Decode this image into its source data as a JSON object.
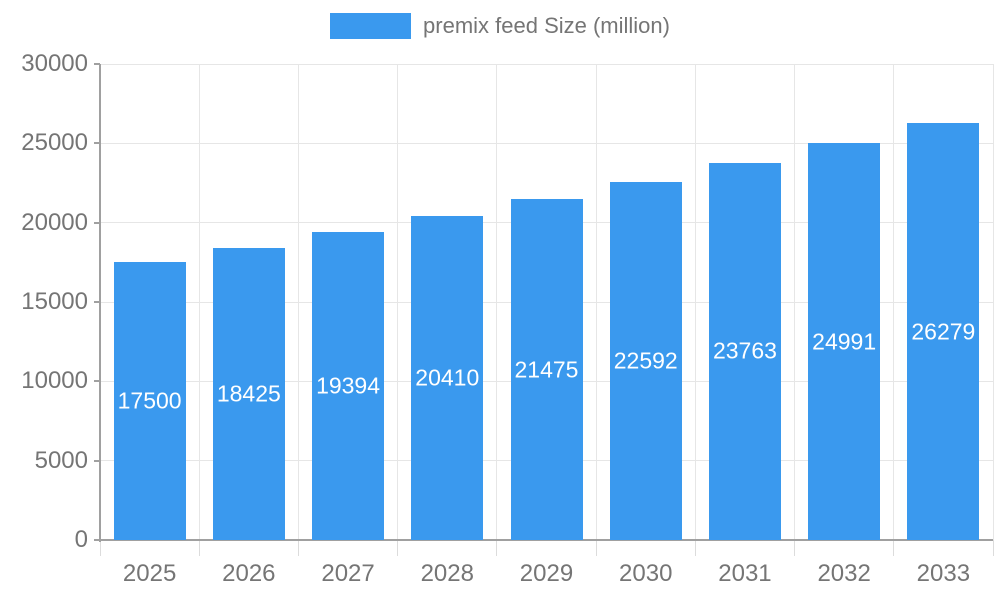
{
  "legend": {
    "label": "premix feed Size (million)"
  },
  "chart_data": {
    "type": "bar",
    "title": "",
    "series_name": "premix feed Size (million)",
    "categories": [
      "2025",
      "2026",
      "2027",
      "2028",
      "2029",
      "2030",
      "2031",
      "2032",
      "2033"
    ],
    "values": [
      17500,
      18425,
      19394,
      20410,
      21475,
      22592,
      23763,
      24991,
      26279
    ],
    "xlabel": "",
    "ylabel": "",
    "ylim": [
      0,
      30000
    ],
    "yticks": [
      0,
      5000,
      10000,
      15000,
      20000,
      25000,
      30000
    ],
    "grid": true,
    "legend_position": "top",
    "value_labels": "inside-center",
    "colors": {
      "bar": "#3a99ee",
      "grid": "#e6e6e6",
      "axis": "#a0a0a0",
      "x_tick_mark": "#dcdcdc",
      "tick_label": "#757575",
      "value_label": "#ffffff",
      "background": "#ffffff"
    }
  }
}
